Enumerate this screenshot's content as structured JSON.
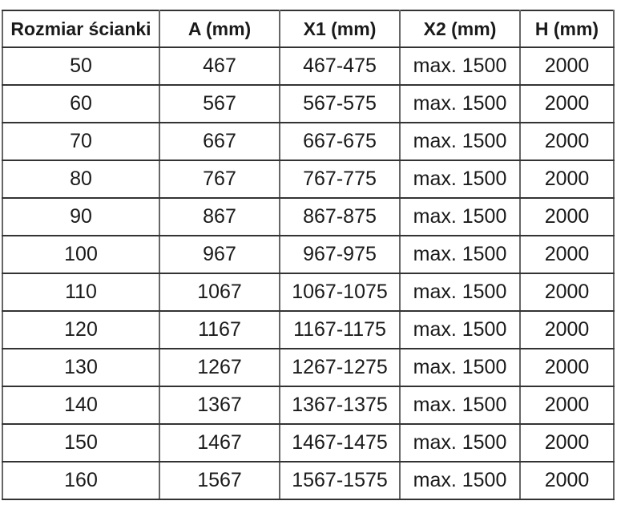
{
  "page": {
    "background": "#ffffff"
  },
  "style": {
    "border_horizontal": "#333333",
    "border_vertical": "#666666",
    "text": "#1a1a1a"
  },
  "table": {
    "columns": [
      "Rozmiar ścianki",
      "A (mm)",
      "X1 (mm)",
      "X2 (mm)",
      "H (mm)"
    ],
    "rows": [
      [
        "50",
        "467",
        "467-475",
        "max. 1500",
        "2000"
      ],
      [
        "60",
        "567",
        "567-575",
        "max. 1500",
        "2000"
      ],
      [
        "70",
        "667",
        "667-675",
        "max. 1500",
        "2000"
      ],
      [
        "80",
        "767",
        "767-775",
        "max. 1500",
        "2000"
      ],
      [
        "90",
        "867",
        "867-875",
        "max. 1500",
        "2000"
      ],
      [
        "100",
        "967",
        "967-975",
        "max. 1500",
        "2000"
      ],
      [
        "110",
        "1067",
        "1067-1075",
        "max. 1500",
        "2000"
      ],
      [
        "120",
        "1167",
        "1167-1175",
        "max. 1500",
        "2000"
      ],
      [
        "130",
        "1267",
        "1267-1275",
        "max. 1500",
        "2000"
      ],
      [
        "140",
        "1367",
        "1367-1375",
        "max. 1500",
        "2000"
      ],
      [
        "150",
        "1467",
        "1467-1475",
        "max. 1500",
        "2000"
      ],
      [
        "160",
        "1567",
        "1567-1575",
        "max. 1500",
        "2000"
      ]
    ]
  }
}
